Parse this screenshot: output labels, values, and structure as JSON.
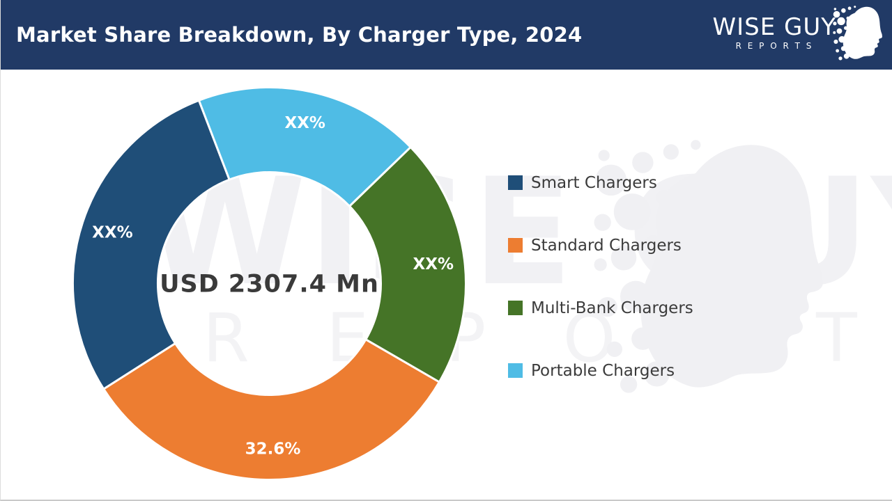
{
  "header": {
    "title": "Market Share Breakdown, By Charger Type, 2024",
    "logo": {
      "line1": "WISE GUY",
      "line2": "R E P O R T S"
    }
  },
  "watermark": {
    "line1": "WISE GUY",
    "line2": "R E P O R T S"
  },
  "chart_data": {
    "type": "pie",
    "subtype": "donut",
    "title": "Market Share Breakdown, By Charger Type, 2024",
    "center_label": "USD 2307.4 Mn",
    "start_angle_deg": 111,
    "direction": "counterclockwise",
    "legend_position": "right",
    "slices": [
      {
        "label": "Smart Chargers",
        "value_pct": 28.2,
        "display": "XX%",
        "color": "#1f4e78"
      },
      {
        "label": "Standard Chargers",
        "value_pct": 32.6,
        "display": "32.6%",
        "color": "#ed7d31"
      },
      {
        "label": "Multi-Bank Chargers",
        "value_pct": 20.6,
        "display": "XX%",
        "color": "#457427"
      },
      {
        "label": "Portable Chargers",
        "value_pct": 18.6,
        "display": "XX%",
        "color": "#4fbce5"
      }
    ]
  },
  "colors": {
    "header_bg": "#213a66",
    "center_text": "#3a3a3a",
    "slice_label_text": "#ffffff",
    "legend_text": "#3b3b3b",
    "watermark": "#f1f1f4"
  }
}
